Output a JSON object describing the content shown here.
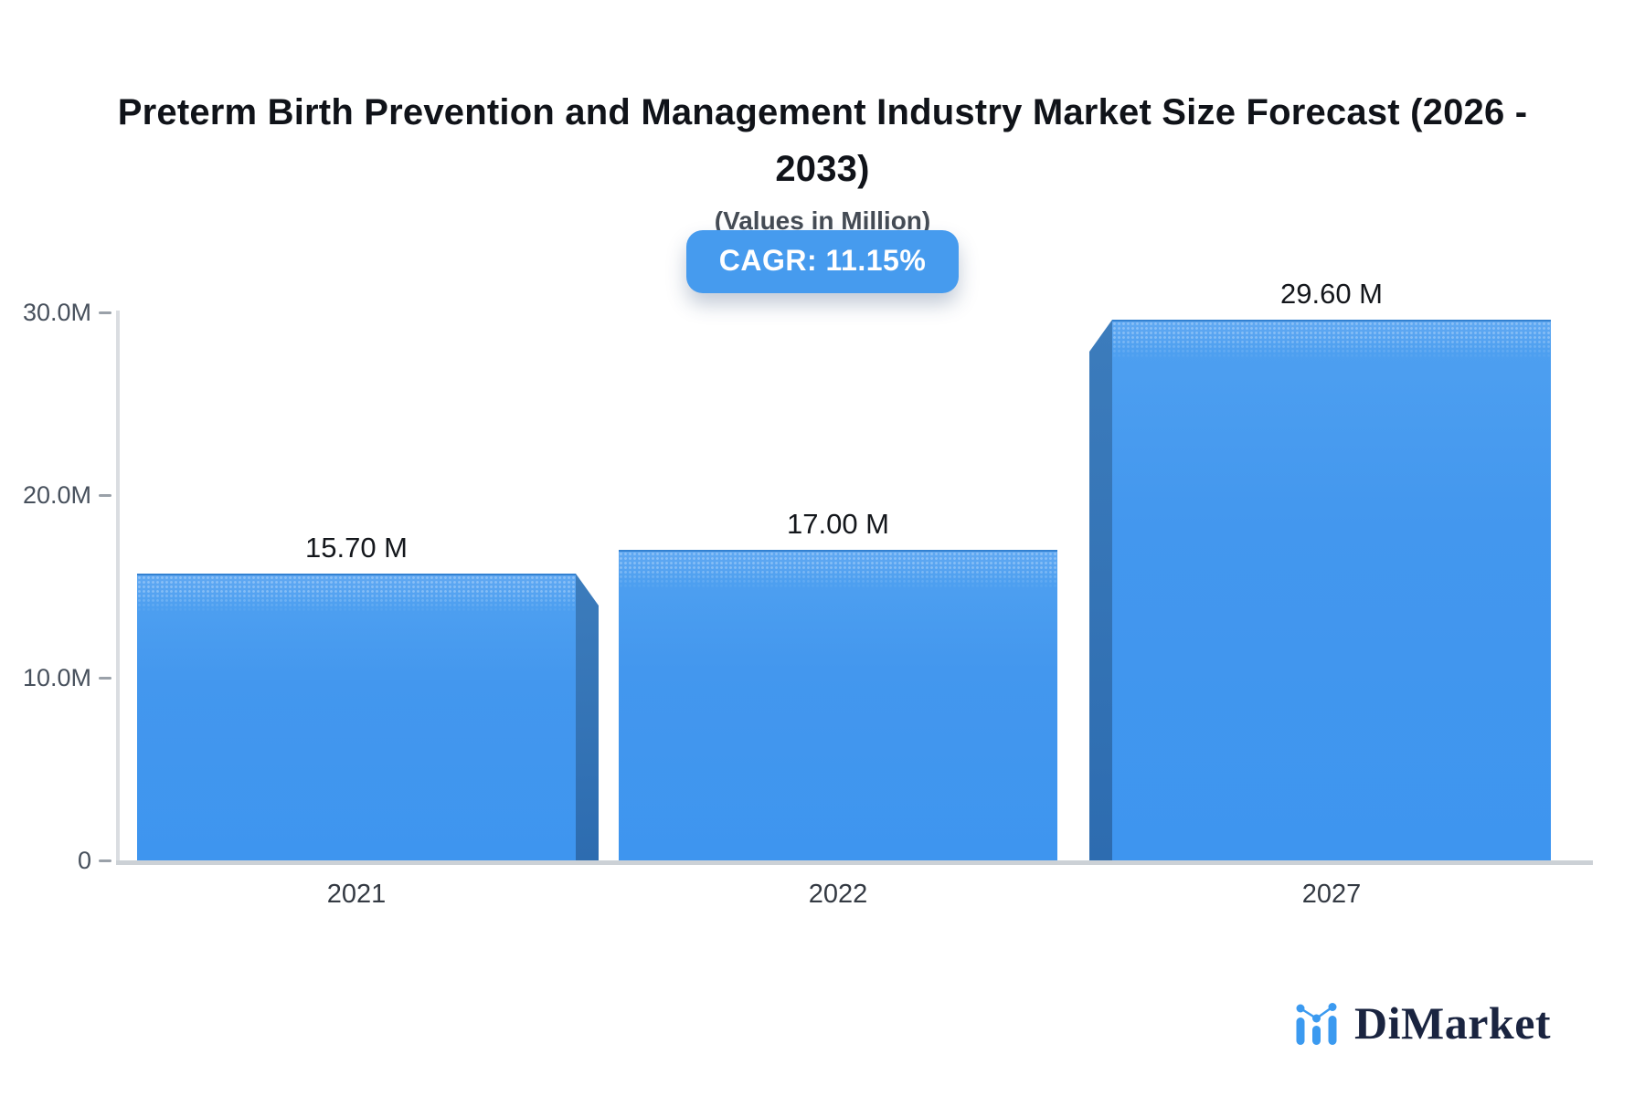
{
  "chart_data": {
    "type": "bar",
    "title": "Preterm Birth Prevention and Management Industry Market Size Forecast (2026 - 2033)",
    "subtitle": "(Values in Million)",
    "annotations": [
      {
        "label": "CAGR: 11.15%",
        "style": "badge",
        "bg_color": "#469bee",
        "text_color": "#ffffff"
      }
    ],
    "categories": [
      "2021",
      "2022",
      "2027"
    ],
    "values": [
      15.7,
      17.0,
      29.6
    ],
    "value_labels": [
      "15.70 M",
      "17.00 M",
      "29.60 M"
    ],
    "unit": "Million (M)",
    "xlabel": "",
    "ylabel": "",
    "ylim": [
      0,
      30
    ],
    "y_ticks": [
      {
        "value": 30,
        "label": "30.0M"
      },
      {
        "value": 20,
        "label": "20.0M"
      },
      {
        "value": 10,
        "label": "10.0M"
      },
      {
        "value": 0,
        "label": "0"
      }
    ],
    "grid": false,
    "legend": false,
    "bar_3d_sides": [
      "right",
      "none",
      "left"
    ],
    "colors": {
      "bar_fill": "#4397ee",
      "bar_top_highlight": "#61a9f2",
      "bar_side_3d": "#2d6cb0",
      "axis_line": "#dadde1",
      "baseline": "#ccd1d6",
      "tick_text": "#47505c",
      "category_text": "#343a43",
      "value_text": "#14171c",
      "title_text": "#101319",
      "subtitle_text": "#454c55"
    }
  },
  "branding": {
    "logo_text": "DiMarket",
    "logo_icon": "mini-bar-chart-trend-icon",
    "logo_icon_color": "#3b9af0",
    "logo_text_color": "#1a2440"
  }
}
